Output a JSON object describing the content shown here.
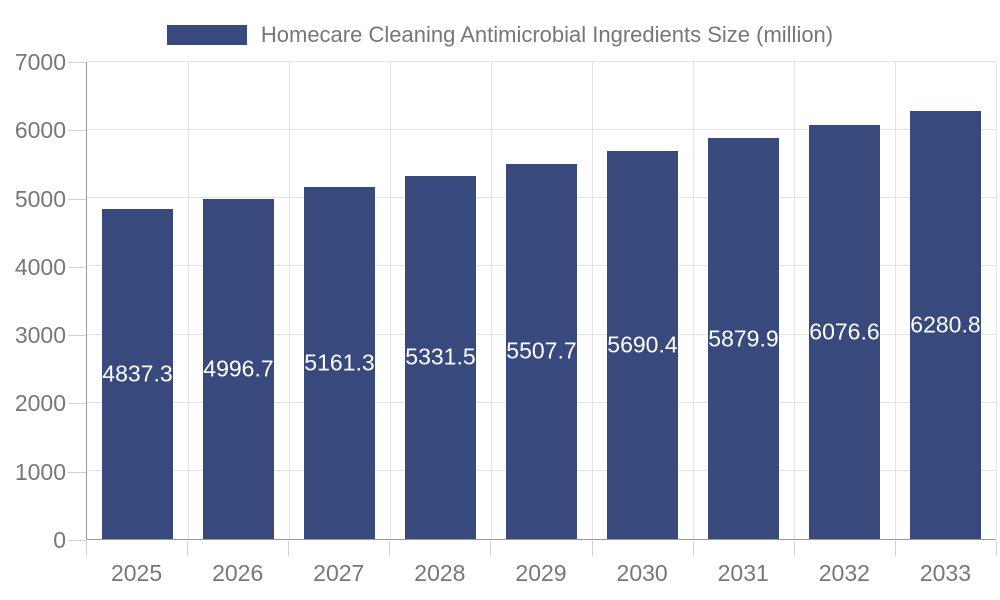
{
  "legend": {
    "label": "Homecare Cleaning Antimicrobial Ingredients Size (million)"
  },
  "chart_data": {
    "type": "bar",
    "title": "Homecare Cleaning Antimicrobial Ingredients Size (million)",
    "categories": [
      "2025",
      "2026",
      "2027",
      "2028",
      "2029",
      "2030",
      "2031",
      "2032",
      "2033"
    ],
    "values": [
      4837.3,
      4996.7,
      5161.3,
      5331.5,
      5507.7,
      5690.4,
      5879.9,
      6076.6,
      6280.8
    ],
    "xlabel": "",
    "ylabel": "",
    "ylim": [
      0,
      7000
    ],
    "yticks": [
      0,
      1000,
      2000,
      3000,
      4000,
      5000,
      6000,
      7000
    ],
    "grid": true,
    "legend_position": "top",
    "bar_color": "#38497e",
    "value_label_color": "#ffffff",
    "axis_label_color": "#76777a",
    "axis_line_color": "#9a9a9a",
    "gridline_color": "#e3e3e6",
    "tick_color": "#d2d2d6"
  }
}
